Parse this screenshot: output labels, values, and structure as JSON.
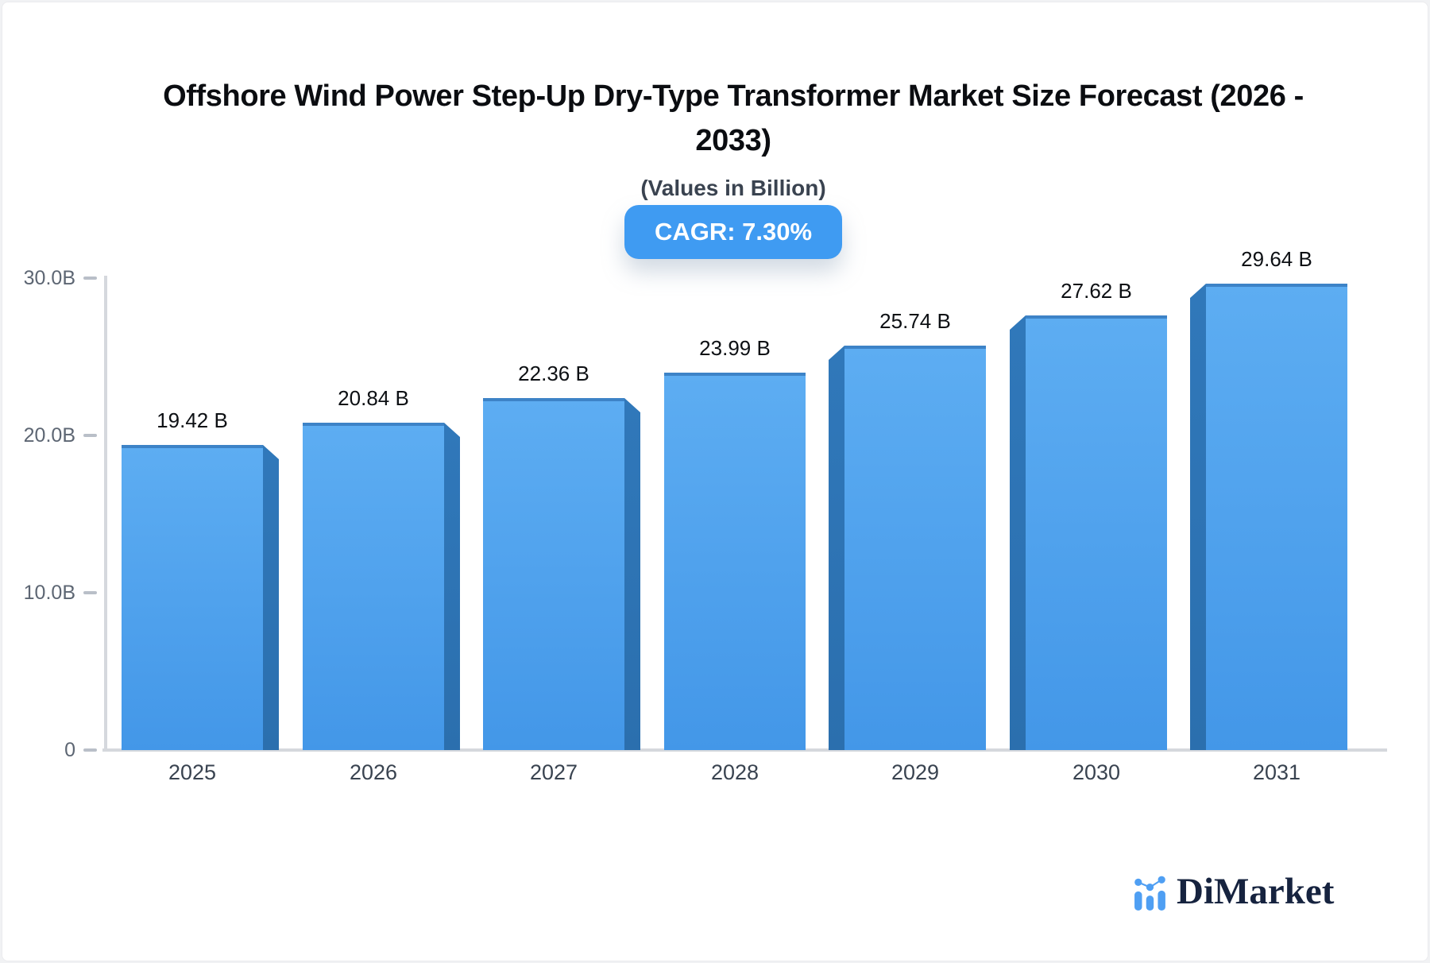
{
  "header": {
    "title_lines": [
      "Offshore Wind Power Step-Up Dry-Type Transformer Market Size Forecast (2026 -",
      "2033)"
    ],
    "subtitle": "(Values in Billion)",
    "cagr_badge": "CAGR: 7.30%"
  },
  "chart_data": {
    "type": "bar",
    "title": "Offshore Wind Power Step-Up Dry-Type Transformer Market Size Forecast (2026 - 2033)",
    "subtitle": "(Values in Billion)",
    "cagr_label": "CAGR: 7.30%",
    "cagr_percent": 7.3,
    "unit": "Billion",
    "categories": [
      "2025",
      "2026",
      "2027",
      "2028",
      "2029",
      "2030",
      "2031"
    ],
    "values": [
      19.42,
      20.84,
      22.36,
      23.99,
      25.74,
      27.62,
      29.64
    ],
    "value_labels": [
      "19.42 B",
      "20.84 B",
      "22.36 B",
      "23.99 B",
      "25.74 B",
      "27.62 B",
      "29.64 B"
    ],
    "xlabel": "",
    "ylabel": "",
    "ylim": [
      0,
      30
    ],
    "yticks": [
      {
        "value": 0,
        "label": "0"
      },
      {
        "value": 10,
        "label": "10.0B"
      },
      {
        "value": 20,
        "label": "20.0B"
      },
      {
        "value": 30,
        "label": "30.0B"
      }
    ],
    "grid": false,
    "legend_position": "none",
    "bar_effect": "3d-perspective",
    "colors": {
      "bar_face_top": "#5dadf2",
      "bar_face_bottom": "#4397e8",
      "bar_top_edge": "#3d83c7",
      "bar_side": "#2f76b8",
      "axis_line": "#d5d8dd",
      "tick": "#b9bfc8",
      "y_label": "#5d6673",
      "x_label": "#394350",
      "value_label": "#0d1014",
      "badge_bg": "#3f9bf2",
      "badge_text": "#ffffff"
    }
  },
  "branding": {
    "logo_text": "DiMarket",
    "logo_icon": "mini-bar-chart-icon",
    "logo_icon_color": "#4f9ff3",
    "logo_text_color": "#16233f"
  }
}
